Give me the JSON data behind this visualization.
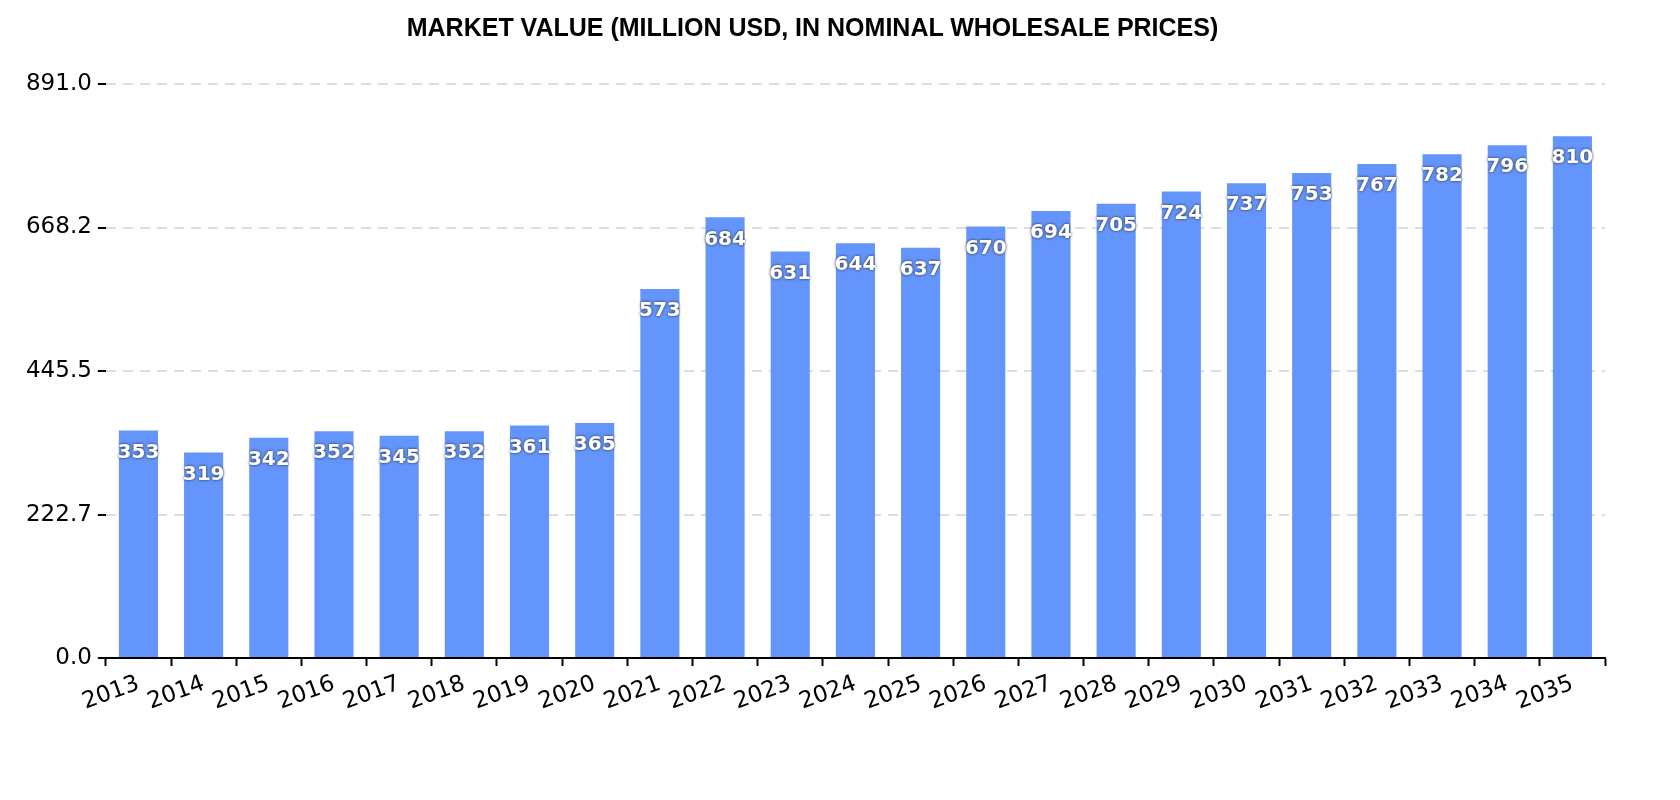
{
  "chart_data": {
    "type": "bar",
    "title": "MARKET VALUE (MILLION USD, IN NOMINAL WHOLESALE PRICES)",
    "categories": [
      "2013",
      "2014",
      "2015",
      "2016",
      "2017",
      "2018",
      "2019",
      "2020",
      "2021",
      "2022",
      "2023",
      "2024",
      "2025",
      "2026",
      "2027",
      "2028",
      "2029",
      "2030",
      "2031",
      "2032",
      "2033",
      "2034",
      "2035"
    ],
    "values": [
      353,
      319,
      342,
      352,
      345,
      352,
      361,
      365,
      573,
      684,
      631,
      644,
      637,
      670,
      694,
      705,
      724,
      737,
      753,
      767,
      782,
      796,
      810
    ],
    "color": "#6495fd",
    "ylim": [
      0,
      891
    ],
    "yticks": [
      {
        "value": 0,
        "label": "0.0"
      },
      {
        "value": 222.75,
        "label": "222.7"
      },
      445.5,
      {
        "value": 668.25,
        "label": "668.2"
      },
      {
        "value": 891,
        "label": "891.0"
      }
    ],
    "grid": "y",
    "legend": false,
    "data_labels": true
  }
}
